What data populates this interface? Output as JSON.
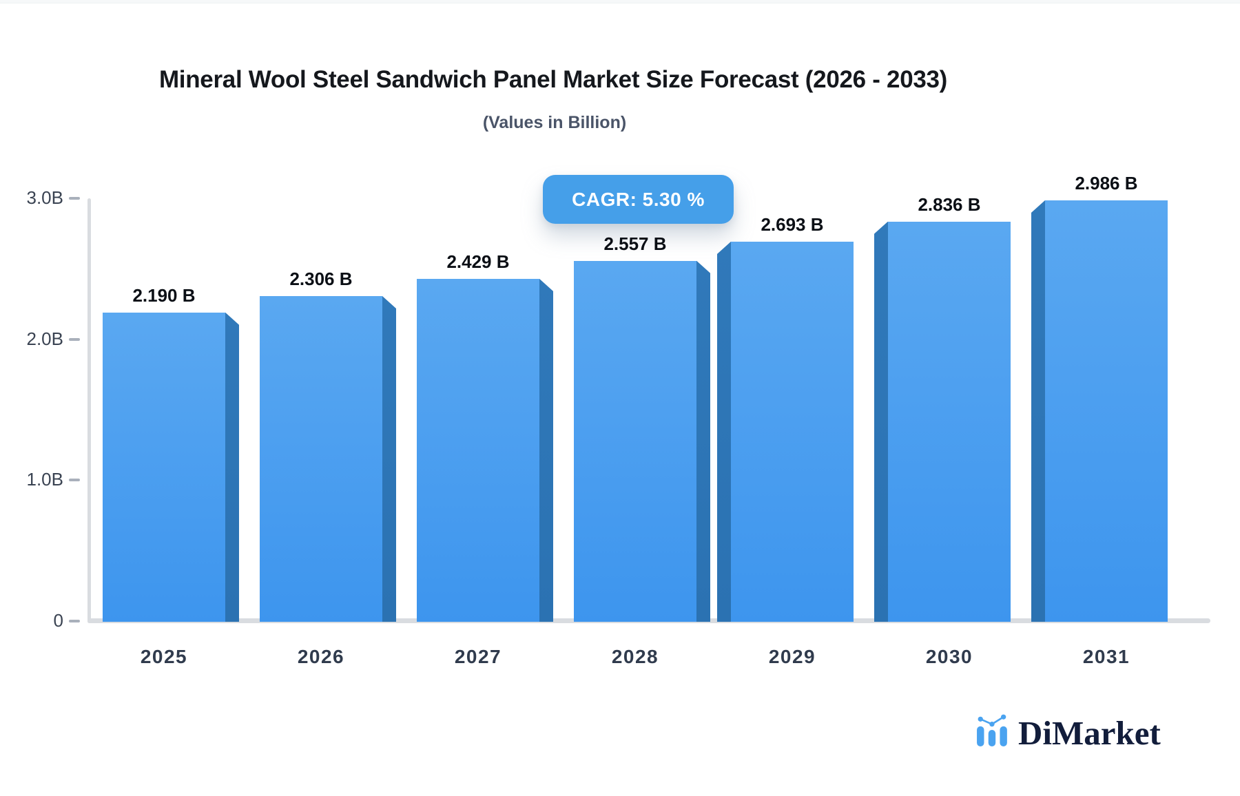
{
  "header": {
    "title": "Mineral Wool Steel Sandwich Panel Market Size Forecast (2026 - 2033)",
    "subtitle": "(Values in Billion)"
  },
  "badge": {
    "label": "CAGR: 5.30 %"
  },
  "chart_data": {
    "type": "bar",
    "title": "Mineral Wool Steel Sandwich Panel Market Size Forecast (2026 - 2033)",
    "subtitle": "(Values in Billion)",
    "categories": [
      "2025",
      "2026",
      "2027",
      "2028",
      "2029",
      "2030",
      "2031"
    ],
    "values": [
      2.19,
      2.306,
      2.429,
      2.557,
      2.693,
      2.836,
      2.986
    ],
    "bar_labels": [
      "2.190 B",
      "2.306 B",
      "2.429 B",
      "2.557 B",
      "2.693 B",
      "2.836 B",
      "2.986 B"
    ],
    "xlabel": "",
    "ylabel": "",
    "ylim": [
      0,
      3.0
    ],
    "y_tick_labels": [
      "3.0B",
      "2.0B",
      "1.0B",
      "0"
    ],
    "y_tick_values": [
      3.0,
      2.0,
      1.0,
      0
    ],
    "grid": "off",
    "legend": "none",
    "annotation": "CAGR: 5.30 %",
    "colors": {
      "bar_face_top": "#5aa8f1",
      "bar_face_bottom": "#3d95ee",
      "bar_side": "#2e77b7",
      "badge": "#459fe9",
      "axis": "#d9dce0",
      "tick": "#a9b0bb"
    }
  },
  "footer": {
    "brand": "DiMarket",
    "logo_icon": "mini-bar-chart-trend-icon",
    "logo_color": "#4aa3f0"
  }
}
